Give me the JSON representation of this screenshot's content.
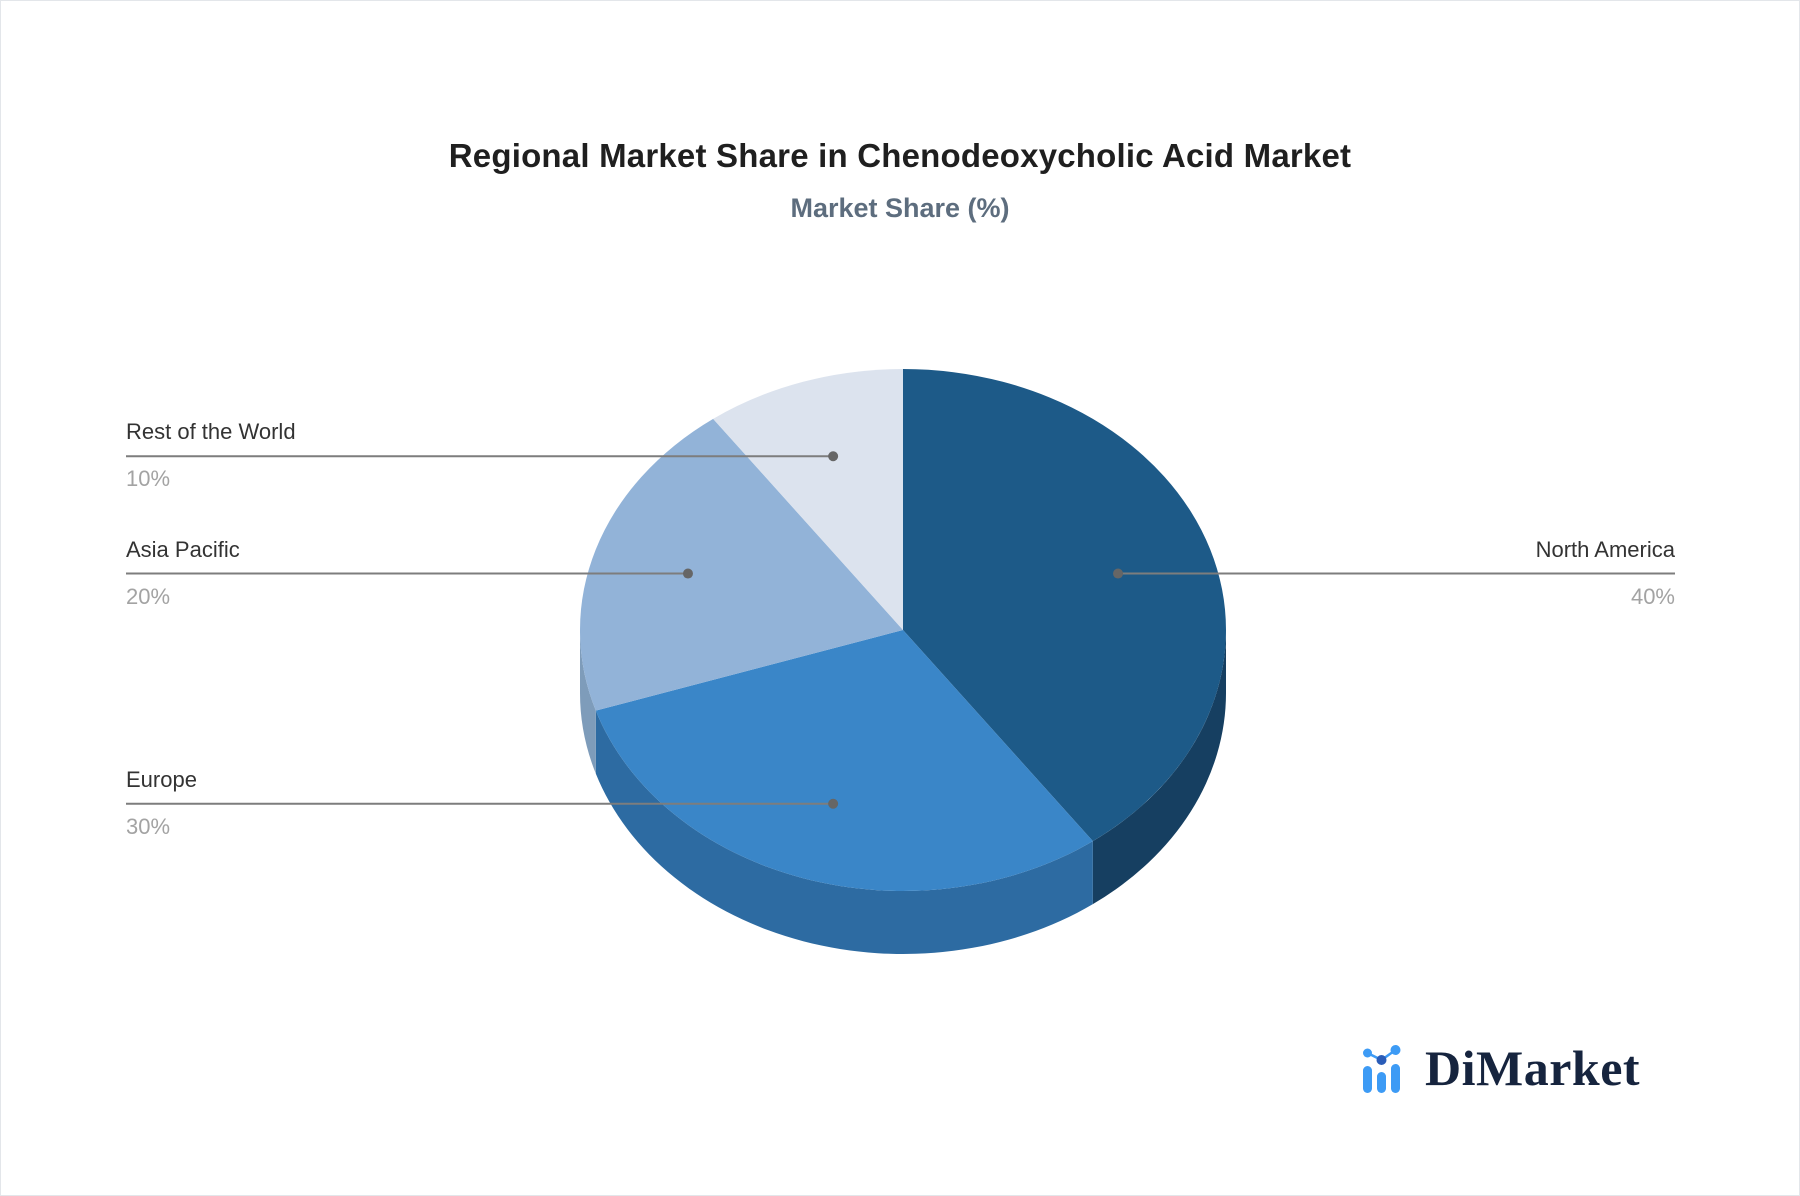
{
  "title": "Regional Market Share in Chenodeoxycholic Acid Market",
  "subtitle": "Market Share (%)",
  "chart_data": {
    "type": "pie",
    "title": "Regional Market Share in Chenodeoxycholic Acid Market",
    "subtitle": "Market Share (%)",
    "unit": "%",
    "style": "3d-pie",
    "start_angle_deg": 90,
    "direction": "clockwise",
    "legend": "none",
    "labeling": "leader-lines",
    "slices": [
      {
        "label": "North America",
        "value": 40,
        "display": "40%",
        "color": "#1d5a88",
        "side_color": "#163f61"
      },
      {
        "label": "Europe",
        "value": 30,
        "display": "30%",
        "color": "#3a86c8",
        "side_color": "#2d6ba2"
      },
      {
        "label": "Asia Pacific",
        "value": 20,
        "display": "20%",
        "color": "#92b3d8",
        "side_color": "#7e9cba"
      },
      {
        "label": "Rest of the World",
        "value": 10,
        "display": "10%",
        "color": "#dce3ee",
        "side_color": "#c3cfdf"
      }
    ]
  },
  "branding": {
    "logo_text": "DiMarket",
    "logo_icon": "bar-line-chart-icon",
    "logo_accent": "#3d9bf5",
    "logo_accent_dark": "#2a5cb8",
    "logo_text_color": "#16243e"
  },
  "colors": {
    "background": "#ffffff",
    "title": "#1f1f1f",
    "subtitle": "#5d6d7e",
    "label_text": "#333333",
    "value_text": "#a3a3a3",
    "leader_line": "#7d7d7d",
    "leader_dot": "#666666"
  }
}
